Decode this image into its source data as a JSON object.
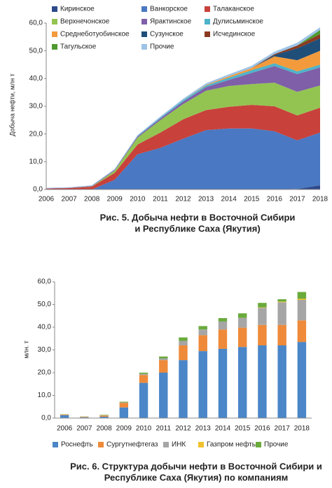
{
  "chart_data": [
    {
      "type": "area",
      "title": [
        "Рис. 5. Добыча нефти в Восточной Сибири",
        "и Республике Саха (Якутия)"
      ],
      "y_label": "Добыча нефти, млн т",
      "categories": [
        "2006",
        "2007",
        "2008",
        "2009",
        "2010",
        "2011",
        "2012",
        "2013",
        "2014",
        "2015",
        "2016",
        "2017",
        "2018"
      ],
      "ylim": [
        0,
        60
      ],
      "yticks": [
        {
          "value": 0,
          "label": "0,0"
        },
        {
          "value": 10,
          "label": "10,0"
        },
        {
          "value": 20,
          "label": "20,0"
        },
        {
          "value": 30,
          "label": "30,0"
        },
        {
          "value": 40,
          "label": "40,0"
        },
        {
          "value": 50,
          "label": "50,0"
        },
        {
          "value": 60,
          "label": "60,0"
        }
      ],
      "grid": false,
      "series": [
        {
          "name": "Киринское",
          "color": "#2e4a8c",
          "values": [
            0,
            0,
            0,
            0,
            0,
            0,
            0,
            0,
            0,
            0,
            0,
            0.2,
            1.5
          ]
        },
        {
          "name": "Ванкорское",
          "color": "#4a78c2",
          "values": [
            0,
            0,
            0,
            3.5,
            12.7,
            15,
            18.3,
            21.4,
            22,
            22,
            21,
            17.5,
            19
          ]
        },
        {
          "name": "Талаканское",
          "color": "#c8413b",
          "values": [
            0.3,
            0.5,
            1,
            2.5,
            3.5,
            5.5,
            7,
            7.2,
            7.8,
            8.5,
            9,
            9,
            9
          ]
        },
        {
          "name": "Верхнечонское",
          "color": "#93c452",
          "values": [
            0,
            0,
            0.1,
            0.8,
            2.5,
            4.5,
            5.5,
            7,
            7.5,
            7.5,
            8.5,
            8.5,
            8
          ]
        },
        {
          "name": "Ярактинское",
          "color": "#7f5fa8",
          "values": [
            0.1,
            0.1,
            0.2,
            0.3,
            0.4,
            0.6,
            0.9,
            1.3,
            2.2,
            4,
            6,
            6.4,
            6.5
          ]
        },
        {
          "name": "Дулисьминское",
          "color": "#4fb3c8",
          "values": [
            0,
            0,
            0,
            0,
            0.2,
            0.3,
            0.5,
            0.6,
            0.8,
            1,
            1,
            1,
            1
          ]
        },
        {
          "name": "Среднеботуобинское",
          "color": "#f39a3c",
          "values": [
            0,
            0,
            0,
            0,
            0,
            0,
            0,
            0.2,
            0.5,
            0.8,
            2.5,
            4,
            5
          ]
        },
        {
          "name": "Сузунское",
          "color": "#1f4e79",
          "values": [
            0,
            0,
            0,
            0,
            0,
            0,
            0,
            0,
            0,
            0,
            0.5,
            4.3,
            4.5
          ]
        },
        {
          "name": "Исчединское",
          "color": "#8b3a1f",
          "values": [
            0,
            0,
            0,
            0,
            0,
            0,
            0,
            0,
            0,
            0,
            0.3,
            1,
            1.5
          ]
        },
        {
          "name": "Тагульское",
          "color": "#4e9a2f",
          "values": [
            0,
            0,
            0,
            0,
            0,
            0,
            0,
            0,
            0,
            0,
            0,
            0,
            1.5
          ]
        },
        {
          "name": "Прочие",
          "color": "#9dc3e6",
          "values": [
            0.2,
            0.2,
            0.2,
            0.3,
            0.3,
            0.4,
            0.5,
            0.6,
            0.7,
            0.8,
            0.9,
            1,
            1
          ]
        }
      ]
    },
    {
      "type": "bar",
      "title": [
        "Рис. 6. Структура добычи нефти в Восточной Сибири и",
        "Республике Саха (Якутия) по компаниям"
      ],
      "y_label": "млн. т",
      "categories": [
        "2006",
        "2007",
        "2008",
        "2009",
        "2010",
        "2011",
        "2012",
        "2013",
        "2014",
        "2015",
        "2016",
        "2017",
        "2018"
      ],
      "ylim": [
        0,
        60
      ],
      "yticks": [
        {
          "value": 0,
          "label": "0,0"
        },
        {
          "value": 10,
          "label": "10,0"
        },
        {
          "value": 20,
          "label": "20,0"
        },
        {
          "value": 30,
          "label": "30,0"
        },
        {
          "value": 40,
          "label": "40,0"
        },
        {
          "value": 50,
          "label": "50,0"
        },
        {
          "value": 60,
          "label": "60,0"
        }
      ],
      "grid": false,
      "series": [
        {
          "name": "Роснефть",
          "color": "#4a86c8",
          "values": [
            1.3,
            0.3,
            0.6,
            4.7,
            15.5,
            20,
            25.5,
            29.5,
            30.5,
            31.3,
            32,
            32,
            33.5
          ]
        },
        {
          "name": "Сургутнефтегаз",
          "color": "#ee8a3a",
          "values": [
            0.3,
            0.2,
            0.5,
            2,
            3.5,
            5.5,
            6.5,
            7,
            8.5,
            8.5,
            9,
            9,
            9.5
          ]
        },
        {
          "name": "ИНК",
          "color": "#a6a6a6",
          "values": [
            0,
            0.1,
            0.1,
            0.2,
            0.5,
            0.8,
            2,
            2.5,
            3.5,
            4.3,
            7.5,
            10,
            9
          ]
        },
        {
          "name": "Газпром нефть",
          "color": "#f2c12e",
          "values": [
            0,
            0,
            0,
            0,
            0,
            0,
            0,
            0,
            0,
            0,
            0.2,
            0.3,
            0.5
          ]
        },
        {
          "name": "Прочие",
          "color": "#6aab3c",
          "values": [
            0.1,
            0.1,
            0.2,
            0.3,
            0.5,
            0.8,
            1.5,
            1.5,
            1.5,
            2,
            2,
            1,
            3
          ]
        }
      ]
    }
  ]
}
